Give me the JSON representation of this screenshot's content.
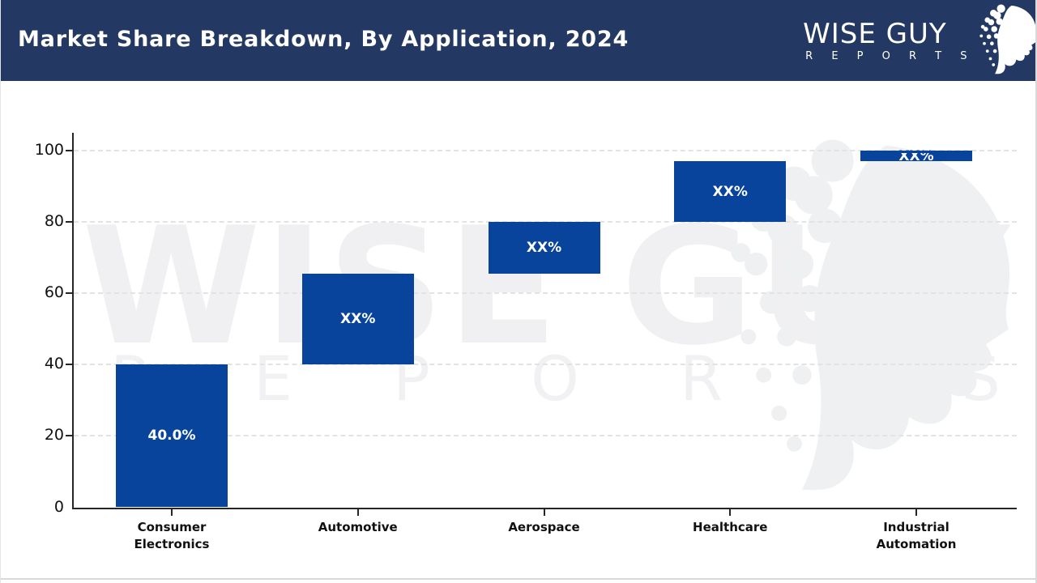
{
  "header": {
    "title": "Market Share Breakdown, By Application, 2024",
    "logo_line1": "WISE GUY",
    "logo_line2": "R E P O R T S"
  },
  "watermark": {
    "line1": "WISE GUY",
    "line2": "R E P O R T S"
  },
  "colors": {
    "header_bg": "#233862",
    "bar_blue": "#08449C",
    "grid_gray": "#e3e3e3",
    "axis_black": "#262626",
    "watermark_gray": "#f0f0f3",
    "label_white": "#ffffff"
  },
  "chart_data": {
    "type": "bar",
    "subtype": "waterfall",
    "title": "Market Share Breakdown, By Application, 2024",
    "categories": [
      "Consumer Electronics",
      "Automotive",
      "Aerospace",
      "Healthcare",
      "Industrial Automation"
    ],
    "segments": [
      {
        "category": "Consumer Electronics",
        "start": 0,
        "end": 40,
        "label": "40.0%"
      },
      {
        "category": "Automotive",
        "start": 40,
        "end": 65.5,
        "label": "XX%"
      },
      {
        "category": "Aerospace",
        "start": 65.5,
        "end": 80,
        "label": "XX%"
      },
      {
        "category": "Healthcare",
        "start": 80,
        "end": 97,
        "label": "XX%"
      },
      {
        "category": "Industrial Automation",
        "start": 97,
        "end": 100,
        "label": "XX%"
      }
    ],
    "ylabel": "",
    "xlabel": "",
    "yticks": [
      0,
      20,
      40,
      60,
      80,
      100
    ],
    "ylim": [
      0,
      105
    ],
    "grid": "horizontal-dashed",
    "legend": "none",
    "bar_color": "#08449C",
    "value_label_color": "#ffffff"
  }
}
